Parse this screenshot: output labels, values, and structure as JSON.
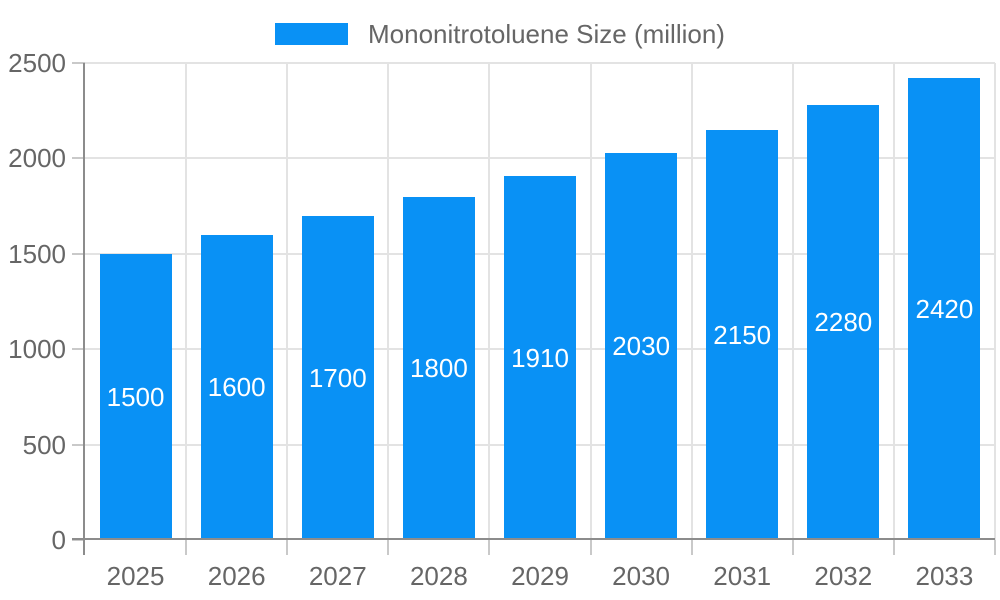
{
  "legend": {
    "series_label": "Mononitrotoluene Size (million)"
  },
  "chart_data": {
    "type": "bar",
    "title": "Mononitrotoluene Size (million)",
    "xlabel": "",
    "ylabel": "",
    "categories": [
      "2025",
      "2026",
      "2027",
      "2028",
      "2029",
      "2030",
      "2031",
      "2032",
      "2033"
    ],
    "values": [
      1500,
      1600,
      1700,
      1800,
      1910,
      2030,
      2150,
      2280,
      2420
    ],
    "ylim": [
      0,
      2500
    ],
    "yticks": [
      0,
      500,
      1000,
      1500,
      2000,
      2500
    ],
    "grid": true,
    "legend_position": "top-center",
    "bar_labels_inside": true,
    "colors": {
      "bar": "#0991f5",
      "bar_label": "#ffffff",
      "grid": "#e3e3e3",
      "tick": "#c9c9c9",
      "axis": "#8c8c8c",
      "text": "#666666",
      "background": "#ffffff"
    }
  }
}
